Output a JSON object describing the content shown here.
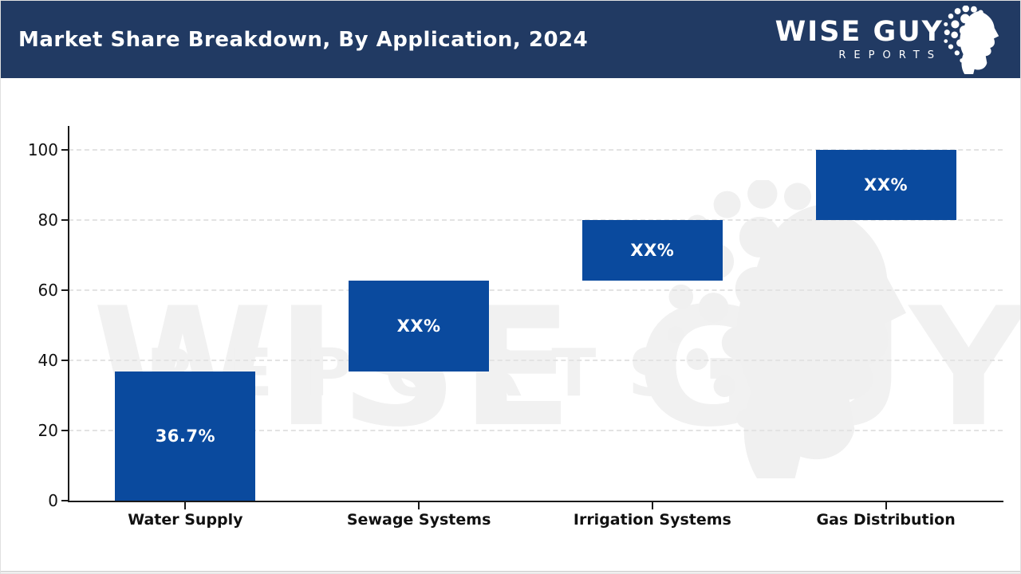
{
  "header": {
    "title": "Market Share Breakdown, By Application, 2024",
    "logo": {
      "line1": "WISE GUY",
      "line2": "REPORTS"
    }
  },
  "watermark": {
    "line1": "WISE GUY",
    "line2": "REPORTS"
  },
  "chart_data": {
    "type": "bar",
    "subtype": "waterfall",
    "title": "Market Share Breakdown, By Application, 2024",
    "categories": [
      "Water Supply",
      "Sewage Systems",
      "Irrigation Systems",
      "Gas Distribution"
    ],
    "bars": [
      {
        "label": "Water Supply",
        "start": 0,
        "end": 36.7,
        "value_label": "36.7%"
      },
      {
        "label": "Sewage Systems",
        "start": 36.7,
        "end": 62.7,
        "value_label": "XX%"
      },
      {
        "label": "Irrigation Systems",
        "start": 62.7,
        "end": 80.0,
        "value_label": "XX%"
      },
      {
        "label": "Gas Distribution",
        "start": 80.0,
        "end": 100.0,
        "value_label": "XX%"
      }
    ],
    "xlabel": "",
    "ylabel": "",
    "ylim": [
      0,
      100
    ],
    "yticks": [
      0,
      20,
      40,
      60,
      80,
      100
    ],
    "grid": "horizontal-dashed",
    "legend": "none",
    "bar_color": "#0a4a9e",
    "value_label_color": "#ffffff"
  },
  "colors": {
    "header_bg": "#213a63",
    "bar": "#0a4a9e",
    "axis": "#1a1a1a",
    "gridline": "#e3e3e3",
    "watermark": "#f1f1f1",
    "bottom_rule": "#d9d9d9"
  }
}
